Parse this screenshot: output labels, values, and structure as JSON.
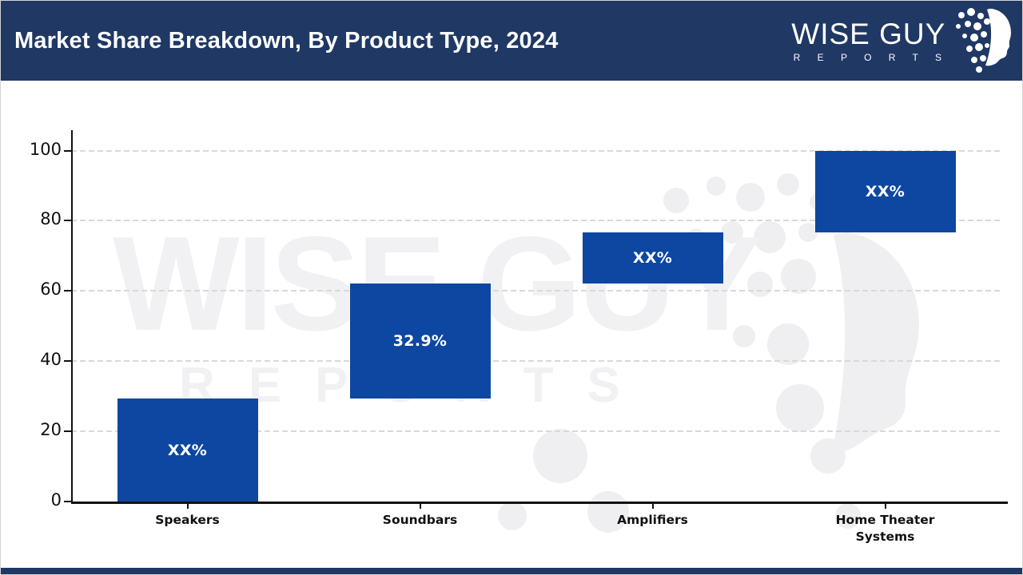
{
  "header": {
    "title": "Market Share Breakdown, By Product Type, 2024",
    "logo": {
      "name": "WISE GUY",
      "subtitle": "R E P O R T S"
    }
  },
  "watermark": {
    "line1": "WISE GUY",
    "line2": "REPORTS"
  },
  "colors": {
    "header_bg": "#1f3864",
    "bar_fill": "#0d47a1",
    "bar_label_text": "#ffffff",
    "grid_line": "#d9d9d9",
    "axis_line": "#111111",
    "watermark": "#f1f1f4"
  },
  "chart_data": {
    "type": "bar",
    "variant": "floating-segment-waterfall",
    "title": "Market Share Breakdown, By Product Type, 2024",
    "categories": [
      "Speakers",
      "Soundbars",
      "Amplifiers",
      "Home Theater Systems"
    ],
    "segments": [
      {
        "category": "Speakers",
        "start": 0,
        "end": 29.3,
        "label": "XX%"
      },
      {
        "category": "Soundbars",
        "start": 29.3,
        "end": 62.2,
        "label": "32.9%",
        "value": 32.9
      },
      {
        "category": "Amplifiers",
        "start": 62.2,
        "end": 76.6,
        "label": "XX%"
      },
      {
        "category": "Home Theater Systems",
        "start": 76.6,
        "end": 100,
        "label": "XX%"
      }
    ],
    "ylim": [
      0,
      100
    ],
    "yticks": [
      0,
      20,
      40,
      60,
      80,
      100
    ],
    "xlabel": "",
    "ylabel": "",
    "grid": "horizontal-dashed",
    "legend": "none"
  }
}
